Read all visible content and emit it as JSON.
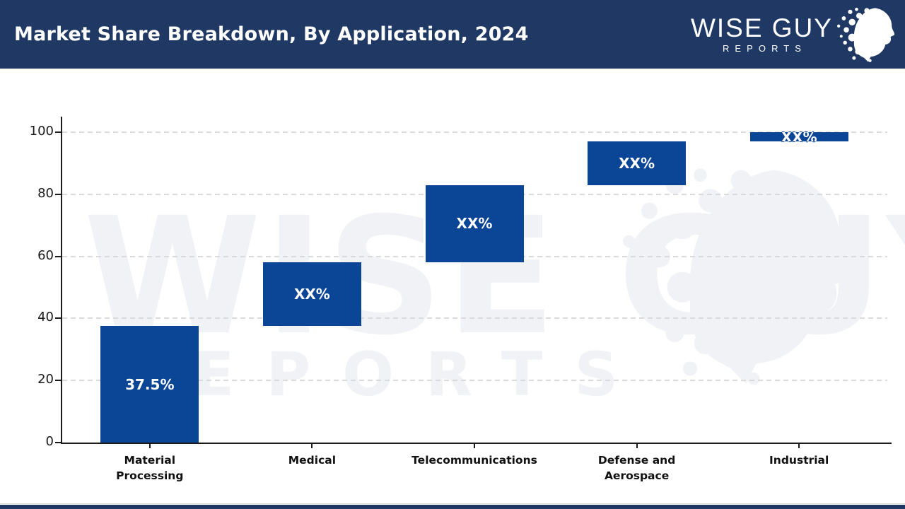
{
  "header": {
    "title": "Market Share Breakdown, By Application, 2024",
    "logo": {
      "line1": "WISE GUY",
      "line2": "REPORTS"
    }
  },
  "watermark": {
    "line1": "WISE GUY",
    "line2": "REPORTS"
  },
  "chart_data": {
    "type": "bar",
    "subtype": "waterfall",
    "title": "Market Share Breakdown, By Application, 2024",
    "categories": [
      "Material Processing",
      "Medical",
      "Telecommunications",
      "Defense and Aerospace",
      "Industrial"
    ],
    "category_tick_lines": [
      [
        "Material",
        "Processing"
      ],
      [
        "Medical"
      ],
      [
        "Telecommunications"
      ],
      [
        "Defense and",
        "Aerospace"
      ],
      [
        "Industrial"
      ]
    ],
    "series": [
      {
        "name": "Market Share",
        "segments": [
          {
            "category": "Material Processing",
            "start": 0,
            "end": 37.5,
            "label": "37.5%"
          },
          {
            "category": "Medical",
            "start": 37.5,
            "end": 58,
            "label": "XX%"
          },
          {
            "category": "Telecommunications",
            "start": 58,
            "end": 83,
            "label": "XX%"
          },
          {
            "category": "Defense and Aerospace",
            "start": 83,
            "end": 97,
            "label": "XX%"
          },
          {
            "category": "Industrial",
            "start": 97,
            "end": 100,
            "label": "XX%"
          }
        ]
      }
    ],
    "xlabel": "",
    "ylabel": "",
    "ylim": [
      0,
      105
    ],
    "yticks": [
      0,
      20,
      40,
      60,
      80,
      100
    ],
    "grid": "horizontal-dashed",
    "legend": false
  },
  "colors": {
    "header_bg": "#1f3864",
    "bar": "#0a4596",
    "bar_label": "#ffffff",
    "grid": "#dadada",
    "axis": "#1a1a1a",
    "tick_text": "#1a1a1a",
    "watermark": "#f1f2f5",
    "footer_bar": "#1f3864"
  }
}
